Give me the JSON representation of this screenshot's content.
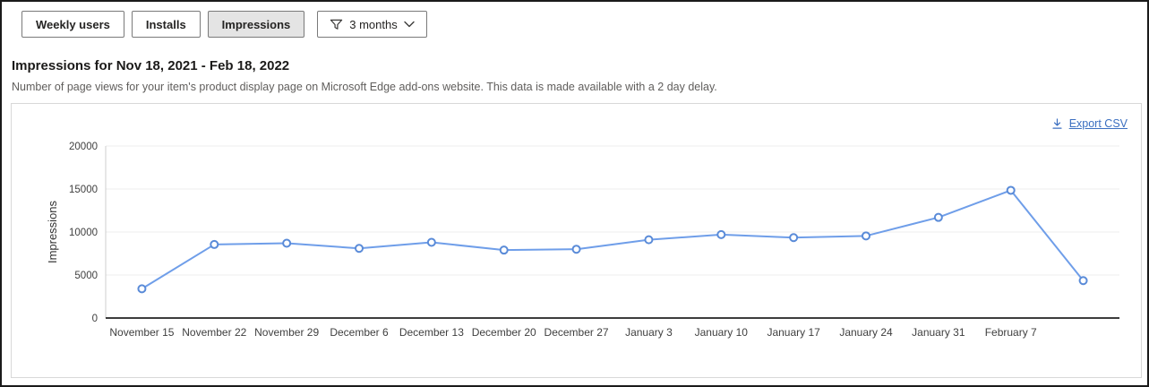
{
  "toolbar": {
    "buttons": [
      {
        "label": "Weekly users",
        "selected": false
      },
      {
        "label": "Installs",
        "selected": false
      },
      {
        "label": "Impressions",
        "selected": true
      }
    ],
    "filter": {
      "label": "3 months"
    }
  },
  "header": {
    "title": "Impressions for Nov 18, 2021 - Feb 18, 2022",
    "description": "Number of page views for your item's product display page on Microsoft Edge add-ons website. This data is made available with a 2 day delay."
  },
  "chart_panel": {
    "export_label": "Export CSV"
  },
  "chart_data": {
    "type": "line",
    "title": "Impressions",
    "ylabel": "Impressions",
    "xlabel": "",
    "ylim": [
      0,
      20000
    ],
    "yticks": [
      0,
      5000,
      10000,
      15000,
      20000
    ],
    "categories": [
      "November 15",
      "November 22",
      "November 29",
      "December 6",
      "December 13",
      "December 20",
      "December 27",
      "January 3",
      "January 10",
      "January 17",
      "January 24",
      "January 31",
      "February 7",
      ""
    ],
    "series": [
      {
        "name": "Impressions",
        "values": [
          3400,
          8550,
          8700,
          8100,
          8800,
          7900,
          8000,
          9100,
          9700,
          9350,
          9550,
          11700,
          14850,
          4350
        ]
      }
    ],
    "grid": true,
    "legend": "none",
    "colors": {
      "line": "#6f9ee9",
      "marker_stroke": "#5a8bd8",
      "marker_fill": "#ffffff",
      "grid": "#ececec",
      "axis": "#3c3c3c",
      "axis_line_y": "#cfcfcf",
      "tick_text": "#3f3f3f",
      "link": "#3b6fc0"
    }
  }
}
